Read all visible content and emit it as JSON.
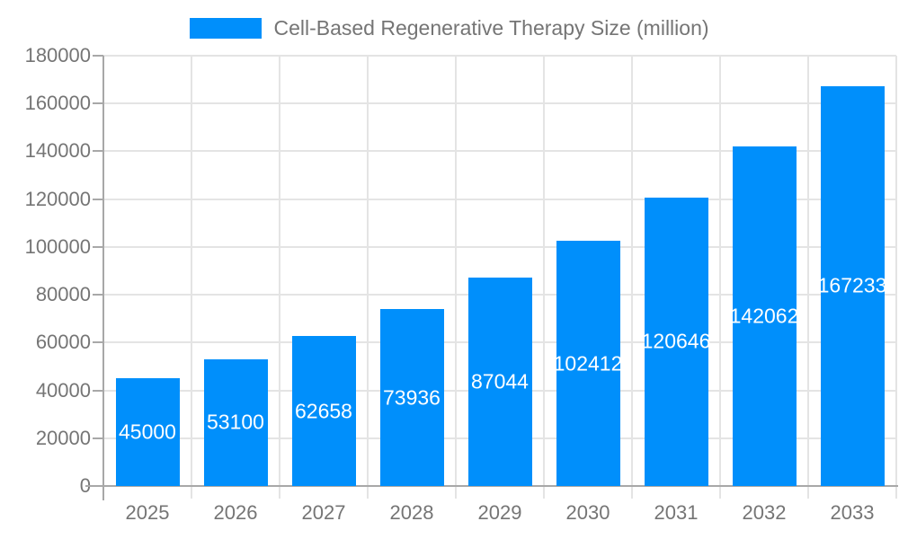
{
  "legend": {
    "series_label": "Cell-Based Regenerative Therapy Size (million)"
  },
  "chart_data": {
    "type": "bar",
    "title": "Cell-Based Regenerative Therapy Size (million)",
    "categories": [
      "2025",
      "2026",
      "2027",
      "2028",
      "2029",
      "2030",
      "2031",
      "2032",
      "2033"
    ],
    "values": [
      45000,
      53100,
      62658,
      73936,
      87044,
      102412,
      120646,
      142062,
      167233
    ],
    "data_labels": [
      "45000",
      "53100",
      "62658",
      "73936",
      "87044",
      "102412",
      "120646",
      "142062",
      "167233"
    ],
    "xlabel": "",
    "ylabel": "",
    "ylim": [
      0,
      180000
    ],
    "yticks": [
      0,
      20000,
      40000,
      60000,
      80000,
      100000,
      120000,
      140000,
      160000,
      180000
    ],
    "grid": true,
    "legend_position": "top",
    "colors": {
      "bar": "#008FFB",
      "grid": "#e4e4e4",
      "axis": "#a8a8a8",
      "tick_label": "#757575",
      "value_label": "#ffffff",
      "background": "#ffffff"
    }
  }
}
